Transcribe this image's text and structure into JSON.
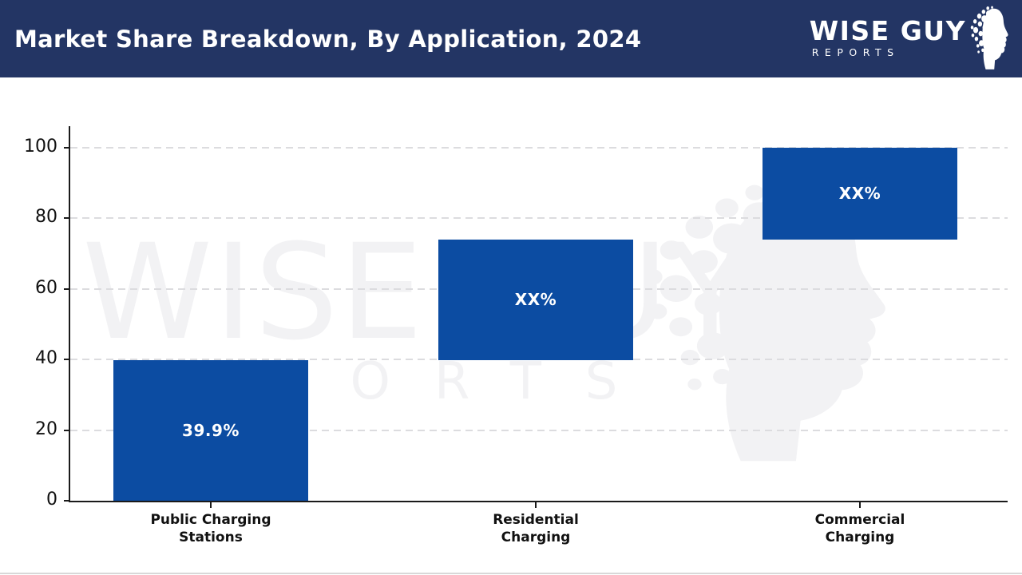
{
  "header": {
    "title": "Market Share Breakdown, By Application, 2024",
    "bg_color": "#233564",
    "text_color": "#ffffff",
    "logo": {
      "brand_line1": "WISE GUY",
      "brand_line2": "REPORTS",
      "face_icon": "dotted-head-profile"
    }
  },
  "watermark": {
    "line1": "WISE GUY",
    "line2": "REPORTS",
    "face_icon": "dotted-head-profile",
    "color": "#f2f2f4"
  },
  "chart_data": {
    "type": "bar",
    "subtype": "waterfall",
    "title": "Market Share Breakdown, By Application, 2024",
    "categories": [
      "Public Charging\nStations",
      "Residential\nCharging",
      "Commercial\nCharging"
    ],
    "segments": [
      {
        "category": "Public Charging Stations",
        "start": 0,
        "end": 39.9,
        "label": "39.9%"
      },
      {
        "category": "Residential Charging",
        "start": 39.9,
        "end": 74,
        "label": "XX%"
      },
      {
        "category": "Commercial Charging",
        "start": 74,
        "end": 100,
        "label": "XX%"
      }
    ],
    "ylim": [
      0,
      100
    ],
    "yticks": [
      0,
      20,
      40,
      60,
      80,
      100
    ],
    "xlabel": "",
    "ylabel": "",
    "grid": "horizontal-dashed",
    "legend": "none",
    "bar_color": "#0c4ca2",
    "bar_label_color": "#ffffff",
    "axis_color": "#1a1a1a",
    "gridline_color": "#dcdcdf"
  }
}
